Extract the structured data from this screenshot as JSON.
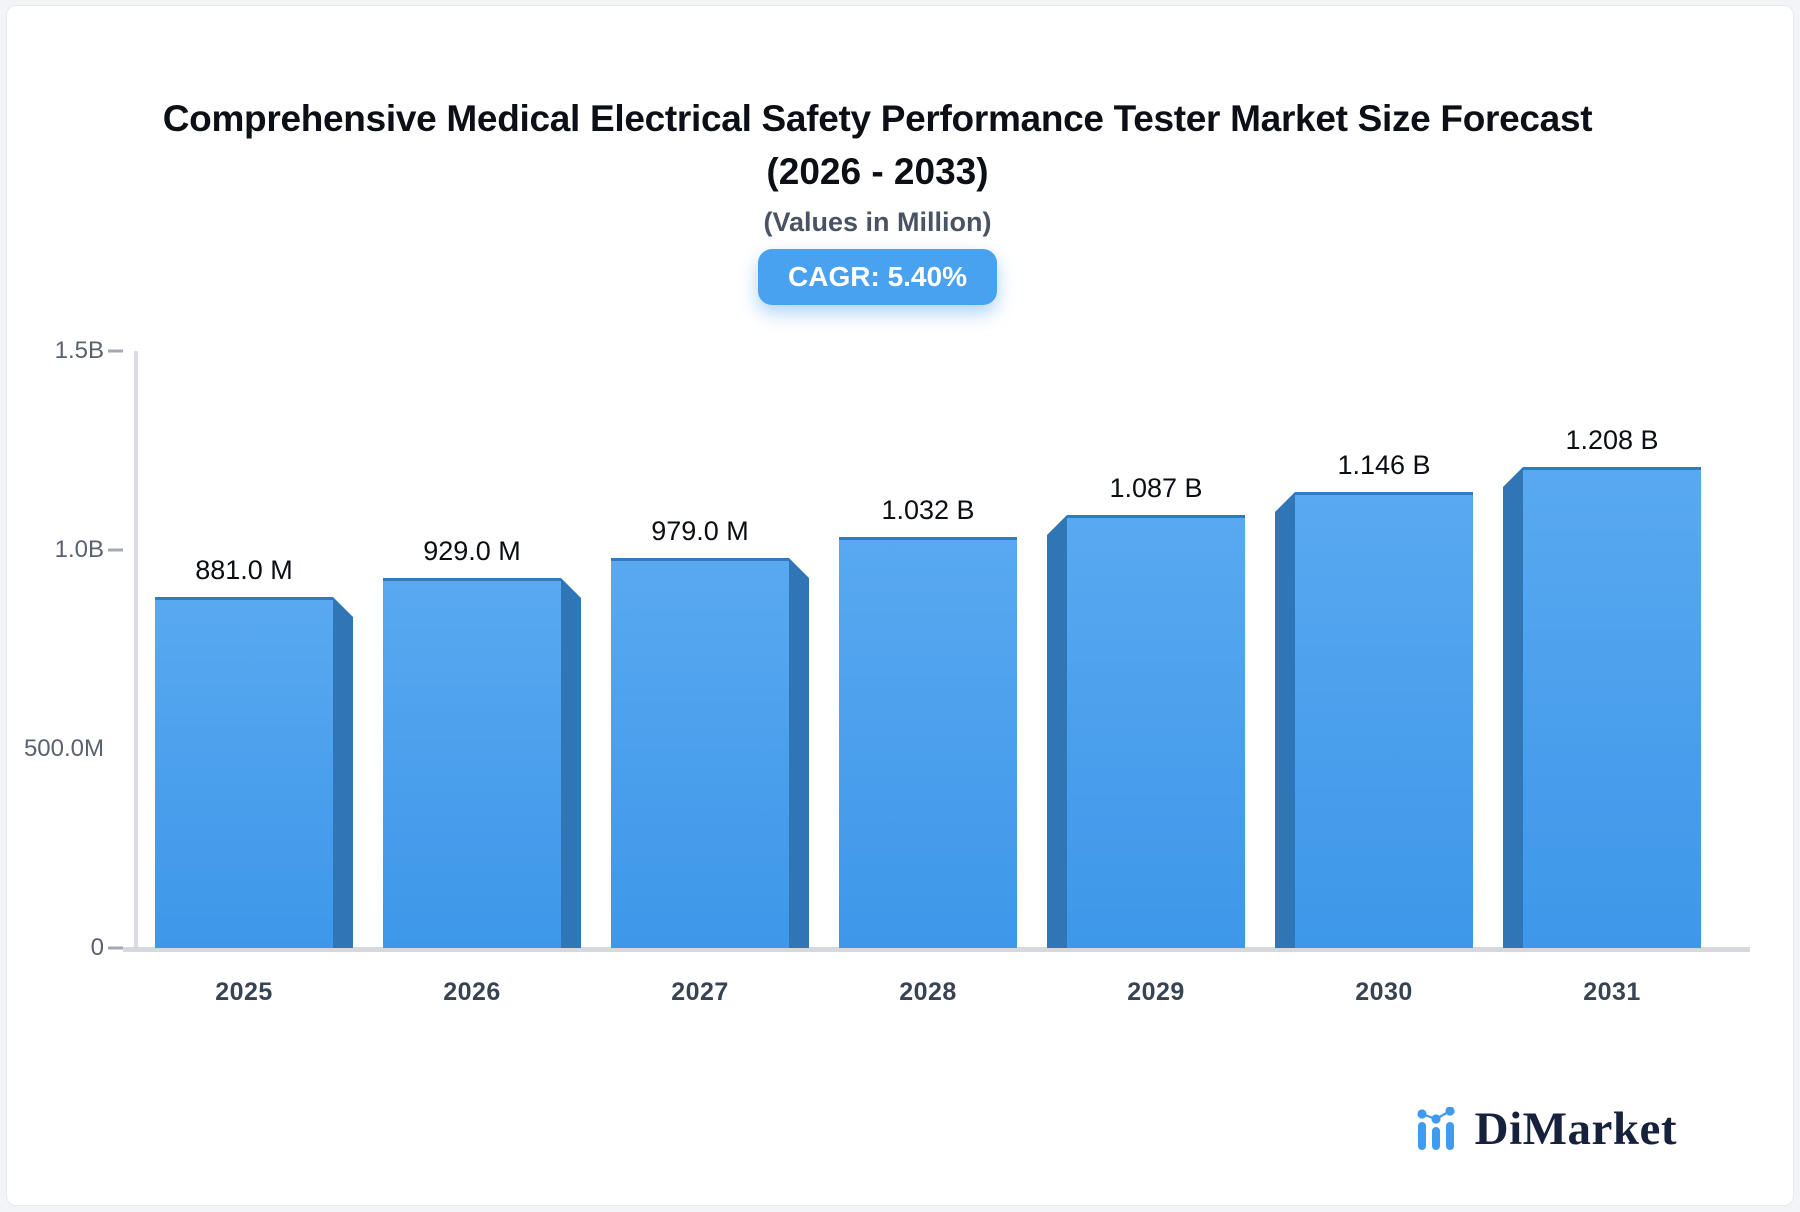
{
  "header": {
    "title_line1": "Comprehensive Medical Electrical Safety Performance Tester Market Size Forecast",
    "title_line2": "(2026 - 2033)",
    "subtitle": "(Values in Million)",
    "cagr_badge": "CAGR: 5.40%"
  },
  "brand": {
    "name": "DiMarket",
    "icon": "bar-chart-logo-icon"
  },
  "colors": {
    "bar_fill_top": "#58a9ef",
    "bar_fill_bottom": "#3e97ea",
    "bar_side_shade": "#2e76b6",
    "bar_top_edge": "#3279c1",
    "badge_bg": "#49a2f0",
    "brand_blue": "#3f9bf0",
    "brand_text": "#16213c",
    "axis_gray": "#d6d8dd",
    "title_text": "#0c0f15",
    "subtitle_text": "#4a5364"
  },
  "chart_data": {
    "type": "bar",
    "title": "Comprehensive Medical Electrical Safety Performance Tester Market Size Forecast (2026 - 2033)",
    "subtitle": "(Values in Million)",
    "cagr": "5.40%",
    "unit": "Million USD",
    "categories": [
      "2025",
      "2026",
      "2027",
      "2028",
      "2029",
      "2030",
      "2031"
    ],
    "values_millions": [
      881,
      929,
      979,
      1032,
      1087,
      1146,
      1208
    ],
    "value_labels": [
      "881.0 M",
      "929.0 M",
      "979.0 M",
      "1.032 B",
      "1.087 B",
      "1.146 B",
      "1.208 B"
    ],
    "ylim_millions": [
      0,
      1500
    ],
    "y_ticks": [
      {
        "label": "1.5B",
        "value_millions": 1500,
        "dash": true
      },
      {
        "label": "1.0B",
        "value_millions": 1000,
        "dash": true
      },
      {
        "label": "500.0M",
        "value_millions": 500,
        "dash": false
      },
      {
        "label": "0",
        "value_millions": 0,
        "dash": true
      }
    ],
    "grid": false,
    "legend": false,
    "style": "3d-perspective-bars"
  }
}
